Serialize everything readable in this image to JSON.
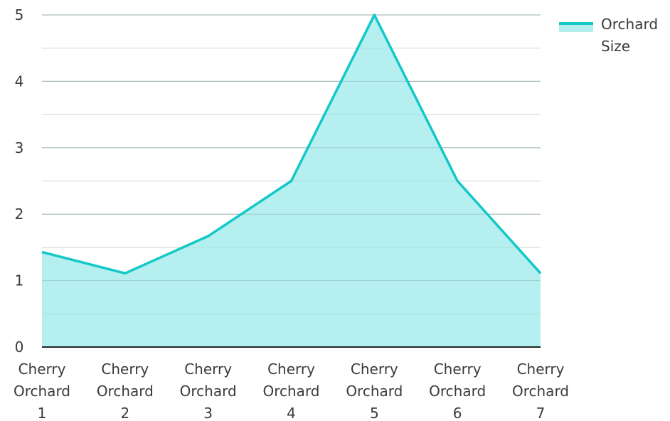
{
  "chart_data": {
    "type": "area",
    "categories": [
      [
        "Cherry",
        "Orchard",
        "1"
      ],
      [
        "Cherry",
        "Orchard",
        "2"
      ],
      [
        "Cherry",
        "Orchard",
        "3"
      ],
      [
        "Cherry",
        "Orchard",
        "4"
      ],
      [
        "Cherry",
        "Orchard",
        "5"
      ],
      [
        "Cherry",
        "Orchard",
        "6"
      ],
      [
        "Cherry",
        "Orchard",
        "7"
      ]
    ],
    "series": [
      {
        "name": [
          "Orchard",
          "Size"
        ],
        "values": [
          1.43,
          1.11,
          1.67,
          2.5,
          5.0,
          2.5,
          1.11
        ]
      }
    ],
    "ylim": [
      0,
      5
    ],
    "yticks": [
      0,
      1,
      2,
      3,
      4,
      5
    ],
    "grid": true,
    "legend_position": "top-right",
    "colors": {
      "line": "#14c8c8",
      "fill": "#b2eeee",
      "grid_major": "#c8c8c8",
      "grid_minor": "#e6e6e6",
      "axis": "#222222"
    }
  }
}
